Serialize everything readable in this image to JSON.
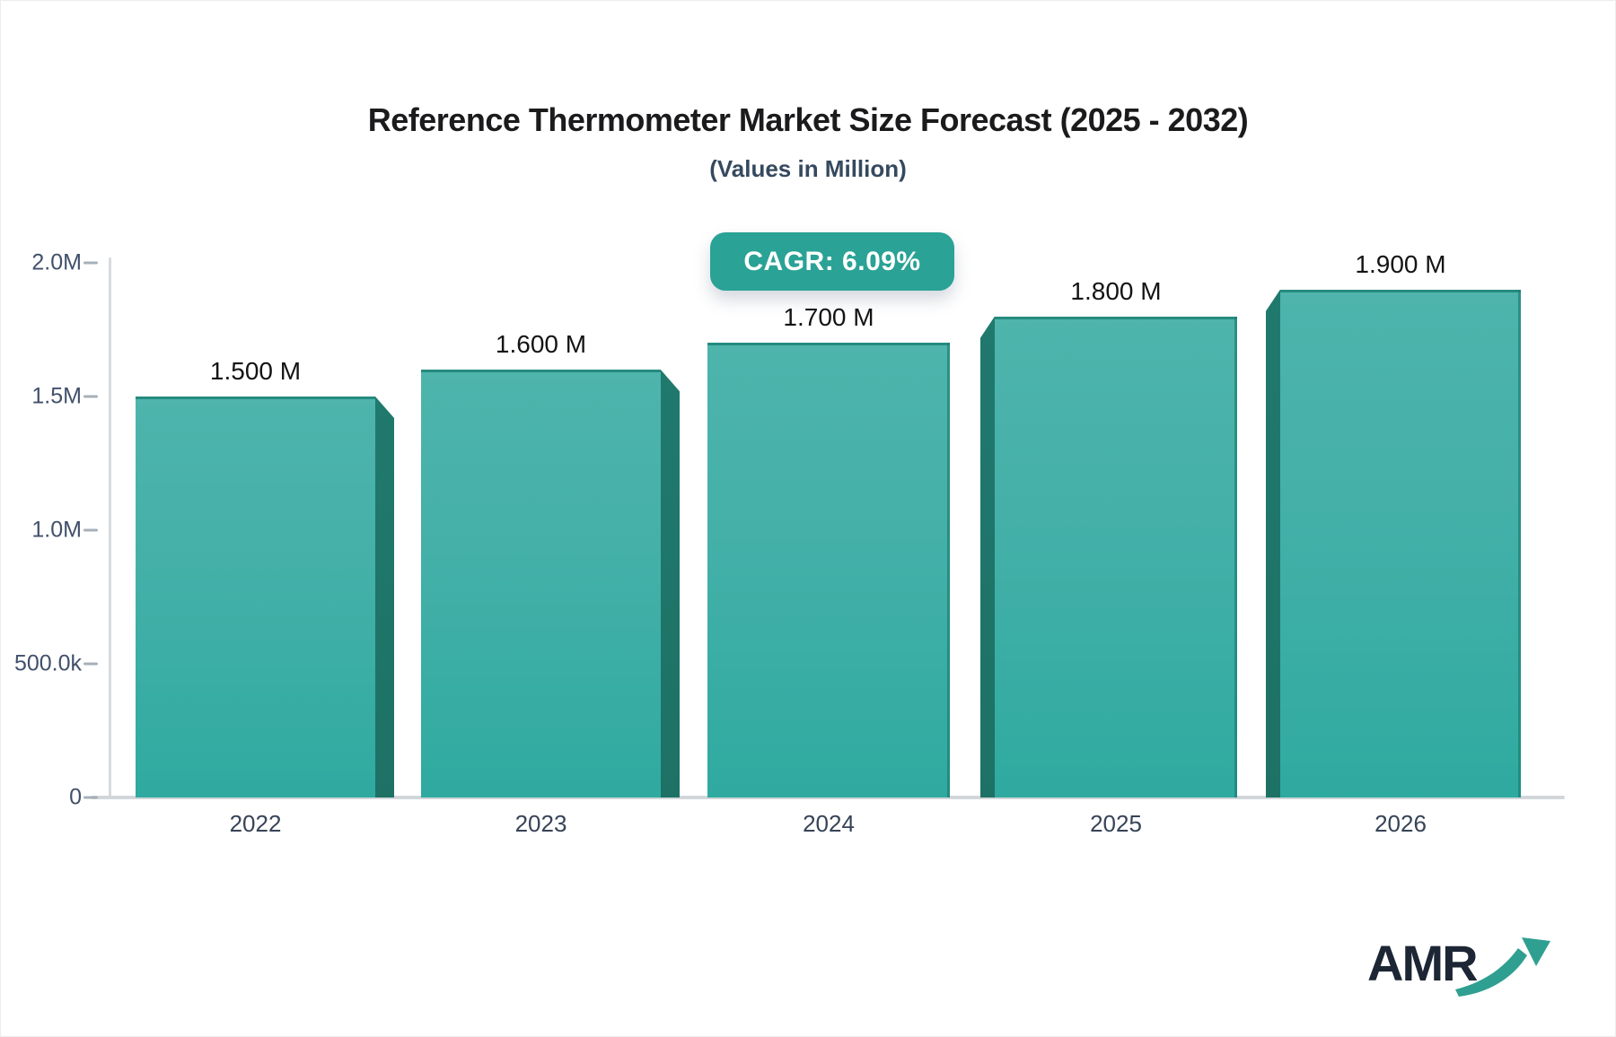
{
  "header": {
    "title": "Reference Thermometer Market Size Forecast (2025 - 2032)",
    "subtitle": "(Values in Million)"
  },
  "badge": {
    "label": "CAGR: 6.09%",
    "bg_color": "#2aa296",
    "text_color": "#ffffff"
  },
  "chart_data": {
    "type": "bar",
    "title": "Reference Thermometer Market Size Forecast (2025 - 2032)",
    "subtitle": "(Values in Million)",
    "categories": [
      "2022",
      "2023",
      "2024",
      "2025",
      "2026"
    ],
    "values": [
      1.5,
      1.6,
      1.7,
      1.8,
      1.9
    ],
    "bar_labels": [
      "1.500 M",
      "1.600 M",
      "1.700 M",
      "1.800 M",
      "1.900 M"
    ],
    "annotation": "CAGR: 6.09%",
    "xlabel": "",
    "ylabel": "",
    "ylim": [
      0,
      2.0
    ],
    "yticks": [
      {
        "value": 2.0,
        "label": "2.0M"
      },
      {
        "value": 1.5,
        "label": "1.5M"
      },
      {
        "value": 1.0,
        "label": "1.0M"
      },
      {
        "value": 0.5,
        "label": "500.0k"
      },
      {
        "value": 0.0,
        "label": "0"
      }
    ],
    "grid": false,
    "legend": false,
    "colors": {
      "bar_top": "#4eb4ac",
      "bar_bottom": "#2faaa0",
      "bar_side": "#1f7b6e",
      "axis_line": "#d2d6da",
      "tick_text": "#41506b",
      "value_text": "#141414"
    }
  },
  "logo": {
    "text": "AMR",
    "arrow_color": "#2f9f91",
    "text_color": "#1c2634"
  }
}
